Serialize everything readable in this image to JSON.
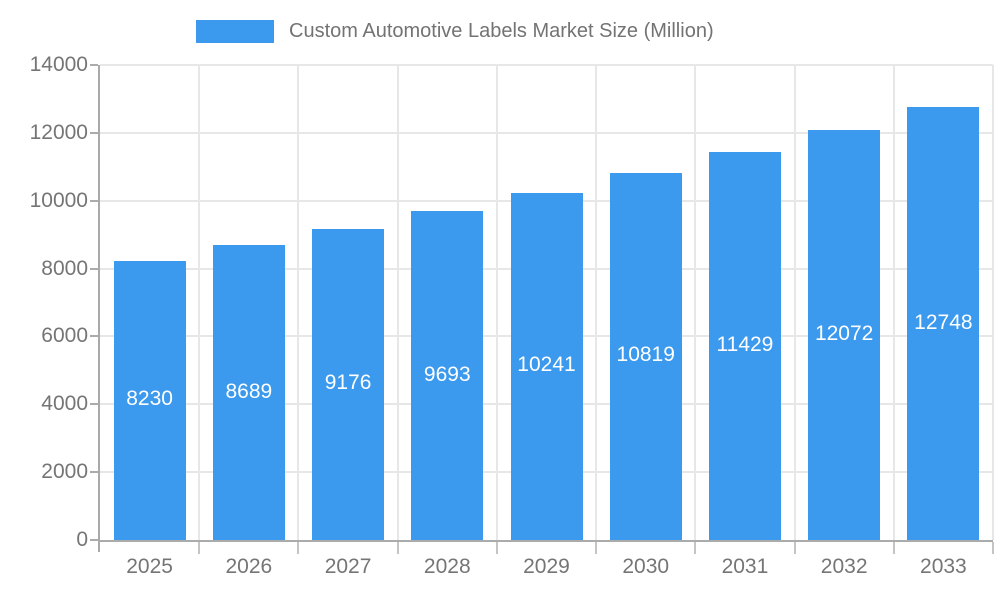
{
  "chart_data": {
    "type": "bar",
    "title": "Custom Automotive Labels Market Size (Million)",
    "categories": [
      "2025",
      "2026",
      "2027",
      "2028",
      "2029",
      "2030",
      "2031",
      "2032",
      "2033"
    ],
    "values": [
      8230,
      8689,
      9176,
      9693,
      10241,
      10819,
      11429,
      12072,
      12748
    ],
    "xlabel": "",
    "ylabel": "",
    "ylim": [
      0,
      14000
    ],
    "ytick_step": 2000,
    "grid": true,
    "legend_position": "top",
    "bar_color": "#3b99ee",
    "value_label_color": "#ffffff"
  },
  "colors": {
    "axis_text": "#757575",
    "legend_text": "#737373",
    "gridline": "#e7e7e7",
    "axis_line": "#ababab"
  }
}
